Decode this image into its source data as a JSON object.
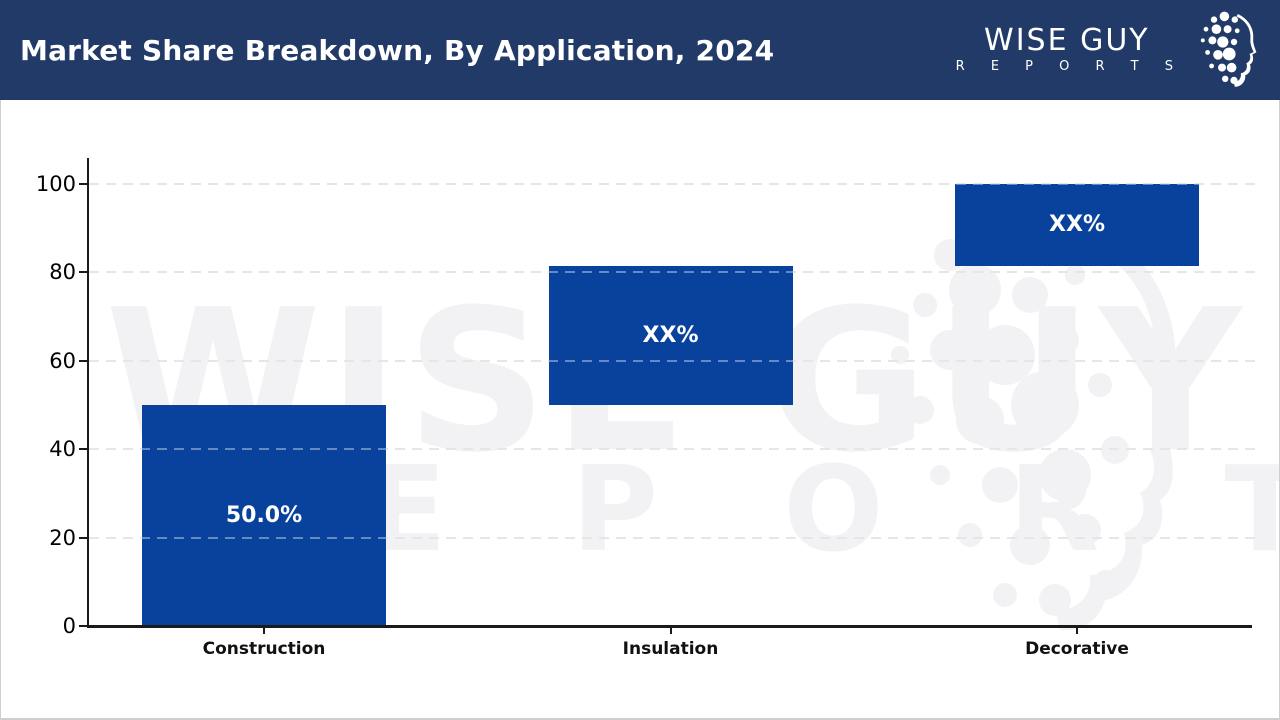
{
  "header": {
    "title": "Market Share Breakdown, By Application, 2024",
    "bg_color": "#223a67",
    "logo": {
      "brand": "WISE GUY",
      "sub": "R E P O R T S",
      "icon": "dotted-head-profile-icon"
    }
  },
  "watermark": {
    "line1": "WISE GUY",
    "line2": "R E P O R T S"
  },
  "chart_data": {
    "type": "bar",
    "subtype": "floating-waterfall",
    "title": "Market Share Breakdown, By Application, 2024",
    "categories": [
      "Construction",
      "Insulation",
      "Decorative"
    ],
    "series": [
      {
        "name": "Construction",
        "start": 0,
        "end": 50,
        "label": "50.0%"
      },
      {
        "name": "Insulation",
        "start": 50,
        "end": 81.5,
        "label": "XX%"
      },
      {
        "name": "Decorative",
        "start": 81.5,
        "end": 100,
        "label": "XX%"
      }
    ],
    "xlabel": "",
    "ylabel": "",
    "yticks": [
      0,
      20,
      40,
      60,
      80,
      100
    ],
    "ylim": [
      0,
      105
    ],
    "grid": true,
    "gridline_style": "dashed",
    "legend_position": "none",
    "bar_color": "#08429c",
    "bar_label_color": "#ffffff",
    "gridline_color": "#d7d7d7",
    "axis_color": "#1a1a1a"
  }
}
